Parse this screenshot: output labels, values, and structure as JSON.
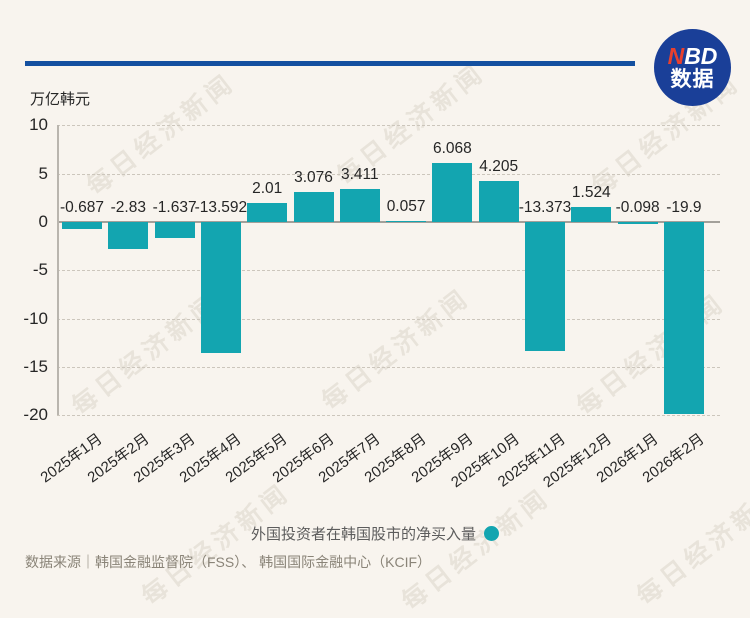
{
  "brand": {
    "logo_n": "N",
    "logo_bd": "BD",
    "logo_subtitle": "数据",
    "accent_blue": "#1a3f98",
    "accent_red": "#e8402e"
  },
  "watermark": {
    "text": "每日经济新闻"
  },
  "chart_data": {
    "type": "bar",
    "title": "",
    "unit_label": "万亿韩元",
    "categories": [
      "2025年1月",
      "2025年2月",
      "2025年3月",
      "2025年4月",
      "2025年5月",
      "2025年6月",
      "2025年7月",
      "2025年8月",
      "2025年9月",
      "2025年10月",
      "2025年11月",
      "2025年12月",
      "2026年1月",
      "2026年2月"
    ],
    "values": [
      -0.687,
      -2.83,
      -1.637,
      -13.592,
      2.01,
      3.076,
      3.411,
      0.057,
      6.068,
      4.205,
      -13.373,
      1.524,
      -0.098,
      -19.9
    ],
    "value_labels": [
      "-0.687",
      "-2.83",
      "-1.637",
      "-13.592",
      "2.01",
      "3.076",
      "3.411",
      "0.057",
      "6.068",
      "4.205",
      "-13.373",
      "1.524",
      "-0.098",
      "-19.9"
    ],
    "xlabel": "",
    "ylabel": "万亿韩元",
    "ylim": [
      -20,
      10
    ],
    "yticks": [
      10,
      5,
      0,
      -5,
      -10,
      -15,
      -20
    ],
    "grid": "horizontal-dashed",
    "bar_color": "#13a5b0",
    "legend": {
      "label": "外国投资者在韩国股市的净买入量",
      "marker": "circle",
      "marker_color": "#13a5b0",
      "position": "bottom-center"
    }
  },
  "footer": {
    "source": "数据来源｜韩国金融监督院（FSS）、 韩国国际金融中心（KCIF）"
  }
}
